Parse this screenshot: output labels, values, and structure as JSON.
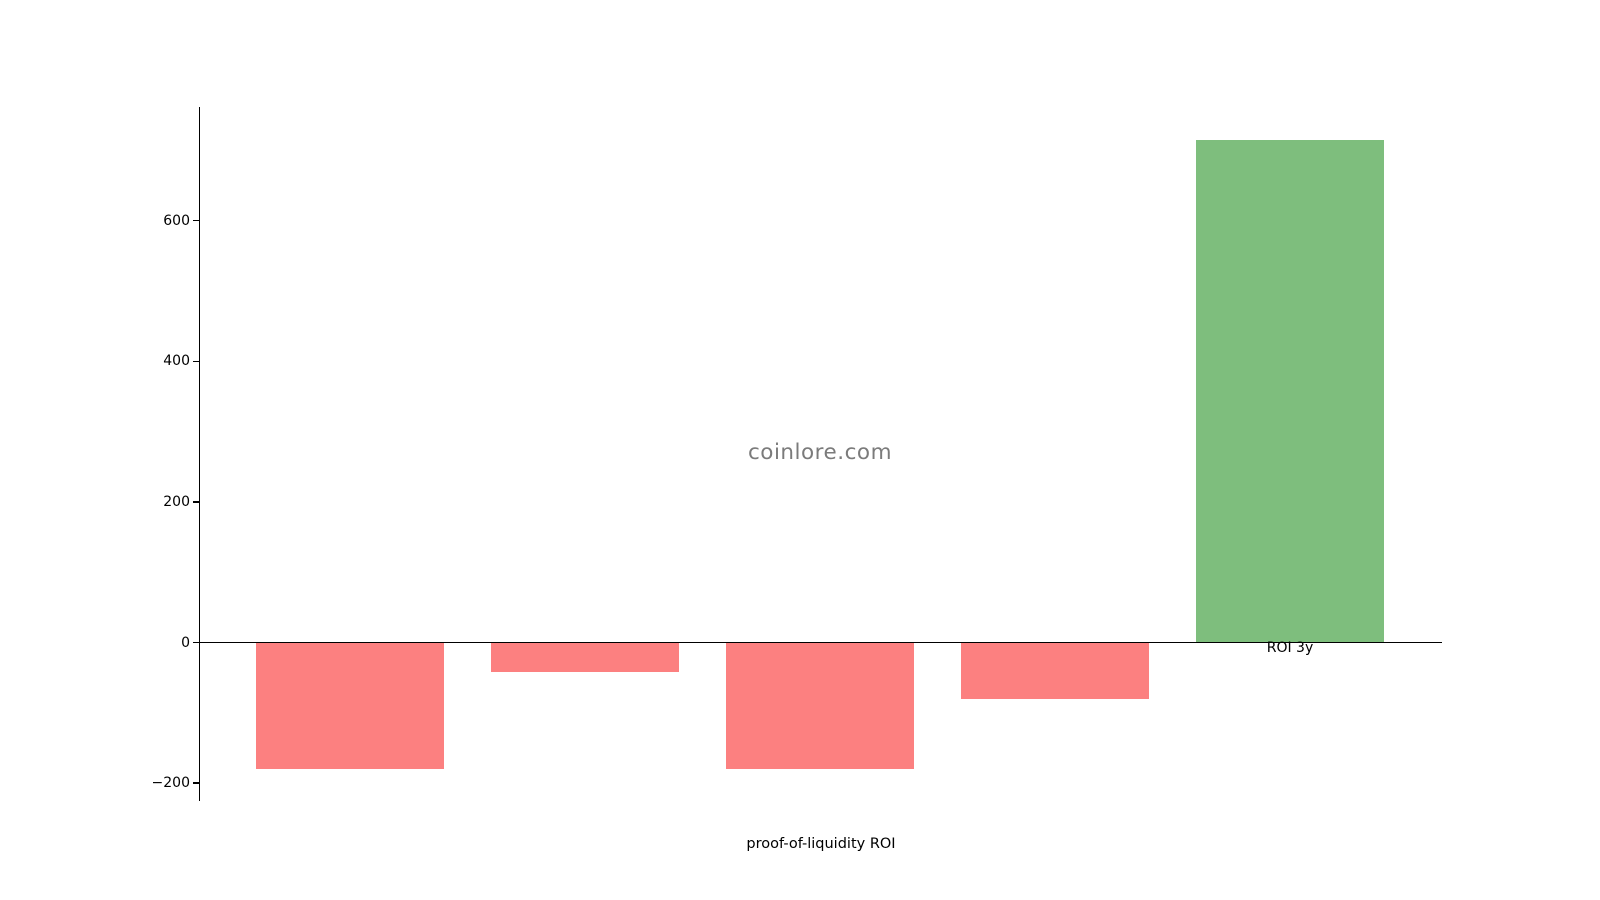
{
  "page": {
    "background": "#ffffff"
  },
  "watermark": {
    "text": "coinlore.com",
    "color": "#7b7b7b"
  },
  "chart_data": {
    "type": "bar",
    "title": "",
    "xlabel": "proof-of-liquidity ROI",
    "ylabel": "",
    "categories": [
      "",
      "",
      "",
      "",
      "ROI 3y"
    ],
    "values": [
      -180,
      -42,
      -180,
      -80,
      715
    ],
    "yticks": [
      {
        "value": 600,
        "label": "600"
      },
      {
        "value": 400,
        "label": "400"
      },
      {
        "value": 200,
        "label": "200"
      },
      {
        "value": 0,
        "label": "0"
      },
      {
        "value": -200,
        "label": "−200"
      }
    ],
    "ylim": [
      -225,
      762
    ],
    "grid": false,
    "legend": false,
    "colors": {
      "positive": "#7ebe7d",
      "negative": "#fc8080",
      "axis": "#000000"
    }
  }
}
